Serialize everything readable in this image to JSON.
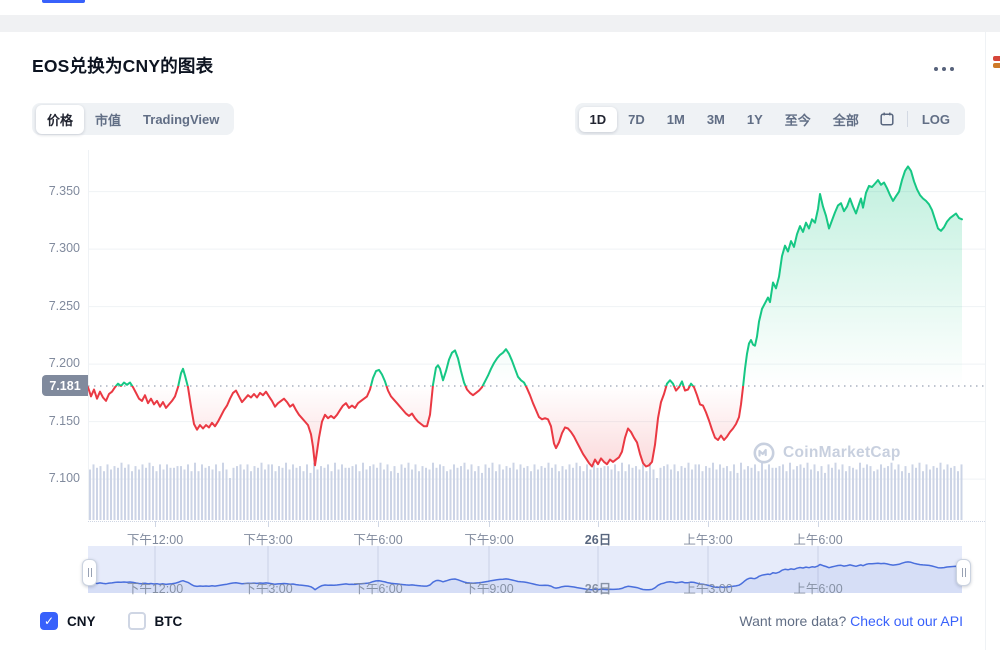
{
  "header": {
    "title": "EOS兑换为CNY的图表",
    "more_label": "more options"
  },
  "toolbar": {
    "chart_type": {
      "options": [
        "价格",
        "市值",
        "TradingView"
      ],
      "active": "价格"
    },
    "ranges": {
      "options": [
        "1D",
        "7D",
        "1M",
        "3M",
        "1Y",
        "至今",
        "全部"
      ],
      "active": "1D",
      "log_label": "LOG"
    }
  },
  "chart_data": {
    "type": "line",
    "title": "EOS to CNY price, 1D",
    "ylabel": "CNY",
    "ylim": [
      7.06,
      7.4
    ],
    "grid": true,
    "baseline_price": 7.181,
    "current_price_label": "7.181",
    "up_color": "#16c784",
    "down_color": "#ea3943",
    "y_ticks": [
      {
        "label": "7.350",
        "price": 7.35
      },
      {
        "label": "7.300",
        "price": 7.3
      },
      {
        "label": "7.250",
        "price": 7.25
      },
      {
        "label": "7.200",
        "price": 7.2
      },
      {
        "label": "7.150",
        "price": 7.15
      },
      {
        "label": "7.100",
        "price": 7.1
      }
    ],
    "x_ticks": [
      {
        "label": "下午12:00",
        "x": 155,
        "bold": false
      },
      {
        "label": "下午3:00",
        "x": 268,
        "bold": false
      },
      {
        "label": "下午6:00",
        "x": 378,
        "bold": false
      },
      {
        "label": "下午9:00",
        "x": 489,
        "bold": false
      },
      {
        "label": "26日",
        "x": 598,
        "bold": true
      },
      {
        "label": "上午3:00",
        "x": 708,
        "bold": false
      },
      {
        "label": "上午6:00",
        "x": 818,
        "bold": false
      }
    ],
    "points": [
      [
        88,
        7.18
      ],
      [
        91,
        7.172
      ],
      [
        94,
        7.178
      ],
      [
        97,
        7.17
      ],
      [
        100,
        7.176
      ],
      [
        103,
        7.171
      ],
      [
        106,
        7.168
      ],
      [
        109,
        7.174
      ],
      [
        112,
        7.176
      ],
      [
        115,
        7.18
      ],
      [
        118,
        7.183
      ],
      [
        121,
        7.181
      ],
      [
        124,
        7.184
      ],
      [
        127,
        7.182
      ],
      [
        130,
        7.184
      ],
      [
        133,
        7.18
      ],
      [
        136,
        7.175
      ],
      [
        139,
        7.17
      ],
      [
        142,
        7.168
      ],
      [
        145,
        7.173
      ],
      [
        148,
        7.166
      ],
      [
        151,
        7.17
      ],
      [
        154,
        7.165
      ],
      [
        157,
        7.168
      ],
      [
        160,
        7.163
      ],
      [
        163,
        7.167
      ],
      [
        166,
        7.162
      ],
      [
        169,
        7.165
      ],
      [
        172,
        7.168
      ],
      [
        175,
        7.172
      ],
      [
        178,
        7.18
      ],
      [
        181,
        7.192
      ],
      [
        183,
        7.196
      ],
      [
        185,
        7.19
      ],
      [
        188,
        7.18
      ],
      [
        191,
        7.163
      ],
      [
        194,
        7.148
      ],
      [
        197,
        7.143
      ],
      [
        200,
        7.147
      ],
      [
        203,
        7.144
      ],
      [
        206,
        7.147
      ],
      [
        209,
        7.145
      ],
      [
        212,
        7.149
      ],
      [
        215,
        7.146
      ],
      [
        218,
        7.15
      ],
      [
        221,
        7.155
      ],
      [
        224,
        7.16
      ],
      [
        227,
        7.164
      ],
      [
        230,
        7.17
      ],
      [
        233,
        7.175
      ],
      [
        236,
        7.177
      ],
      [
        239,
        7.172
      ],
      [
        242,
        7.167
      ],
      [
        245,
        7.17
      ],
      [
        248,
        7.173
      ],
      [
        251,
        7.171
      ],
      [
        254,
        7.174
      ],
      [
        257,
        7.171
      ],
      [
        260,
        7.175
      ],
      [
        263,
        7.173
      ],
      [
        266,
        7.176
      ],
      [
        269,
        7.172
      ],
      [
        272,
        7.168
      ],
      [
        275,
        7.163
      ],
      [
        278,
        7.166
      ],
      [
        281,
        7.168
      ],
      [
        284,
        7.17
      ],
      [
        287,
        7.167
      ],
      [
        290,
        7.163
      ],
      [
        293,
        7.165
      ],
      [
        296,
        7.16
      ],
      [
        299,
        7.156
      ],
      [
        302,
        7.153
      ],
      [
        305,
        7.15
      ],
      [
        308,
        7.147
      ],
      [
        311,
        7.139
      ],
      [
        313,
        7.128
      ],
      [
        315,
        7.112
      ],
      [
        317,
        7.124
      ],
      [
        319,
        7.136
      ],
      [
        322,
        7.15
      ],
      [
        325,
        7.156
      ],
      [
        328,
        7.153
      ],
      [
        331,
        7.155
      ],
      [
        334,
        7.153
      ],
      [
        337,
        7.156
      ],
      [
        340,
        7.16
      ],
      [
        343,
        7.164
      ],
      [
        346,
        7.166
      ],
      [
        349,
        7.162
      ],
      [
        352,
        7.164
      ],
      [
        355,
        7.162
      ],
      [
        358,
        7.166
      ],
      [
        361,
        7.168
      ],
      [
        364,
        7.17
      ],
      [
        367,
        7.172
      ],
      [
        370,
        7.178
      ],
      [
        373,
        7.188
      ],
      [
        376,
        7.194
      ],
      [
        379,
        7.195
      ],
      [
        382,
        7.191
      ],
      [
        385,
        7.185
      ],
      [
        388,
        7.177
      ],
      [
        391,
        7.172
      ],
      [
        394,
        7.169
      ],
      [
        397,
        7.166
      ],
      [
        400,
        7.163
      ],
      [
        403,
        7.16
      ],
      [
        406,
        7.157
      ],
      [
        409,
        7.155
      ],
      [
        412,
        7.157
      ],
      [
        415,
        7.153
      ],
      [
        418,
        7.15
      ],
      [
        421,
        7.148
      ],
      [
        424,
        7.146
      ],
      [
        427,
        7.146
      ],
      [
        430,
        7.156
      ],
      [
        433,
        7.182
      ],
      [
        436,
        7.197
      ],
      [
        438,
        7.199
      ],
      [
        440,
        7.196
      ],
      [
        443,
        7.186
      ],
      [
        446,
        7.194
      ],
      [
        449,
        7.204
      ],
      [
        452,
        7.21
      ],
      [
        455,
        7.212
      ],
      [
        458,
        7.205
      ],
      [
        461,
        7.194
      ],
      [
        464,
        7.184
      ],
      [
        467,
        7.178
      ],
      [
        470,
        7.175
      ],
      [
        473,
        7.173
      ],
      [
        476,
        7.175
      ],
      [
        479,
        7.177
      ],
      [
        482,
        7.18
      ],
      [
        485,
        7.185
      ],
      [
        488,
        7.19
      ],
      [
        491,
        7.196
      ],
      [
        494,
        7.201
      ],
      [
        497,
        7.205
      ],
      [
        500,
        7.208
      ],
      [
        503,
        7.21
      ],
      [
        506,
        7.213
      ],
      [
        509,
        7.209
      ],
      [
        512,
        7.203
      ],
      [
        515,
        7.196
      ],
      [
        518,
        7.189
      ],
      [
        521,
        7.186
      ],
      [
        524,
        7.184
      ],
      [
        527,
        7.179
      ],
      [
        530,
        7.173
      ],
      [
        533,
        7.166
      ],
      [
        536,
        7.16
      ],
      [
        539,
        7.154
      ],
      [
        542,
        7.152
      ],
      [
        545,
        7.153
      ],
      [
        548,
        7.152
      ],
      [
        551,
        7.146
      ],
      [
        554,
        7.131
      ],
      [
        556,
        7.127
      ],
      [
        559,
        7.132
      ],
      [
        562,
        7.14
      ],
      [
        565,
        7.145
      ],
      [
        568,
        7.144
      ],
      [
        571,
        7.141
      ],
      [
        574,
        7.137
      ],
      [
        577,
        7.132
      ],
      [
        580,
        7.127
      ],
      [
        583,
        7.122
      ],
      [
        586,
        7.118
      ],
      [
        589,
        7.114
      ],
      [
        592,
        7.111
      ],
      [
        595,
        7.117
      ],
      [
        598,
        7.113
      ],
      [
        601,
        7.118
      ],
      [
        604,
        7.115
      ],
      [
        607,
        7.113
      ],
      [
        610,
        7.117
      ],
      [
        613,
        7.115
      ],
      [
        616,
        7.117
      ],
      [
        619,
        7.119
      ],
      [
        622,
        7.124
      ],
      [
        625,
        7.136
      ],
      [
        628,
        7.144
      ],
      [
        631,
        7.141
      ],
      [
        634,
        7.136
      ],
      [
        637,
        7.132
      ],
      [
        640,
        7.122
      ],
      [
        643,
        7.114
      ],
      [
        646,
        7.111
      ],
      [
        649,
        7.112
      ],
      [
        652,
        7.115
      ],
      [
        655,
        7.13
      ],
      [
        658,
        7.153
      ],
      [
        661,
        7.167
      ],
      [
        664,
        7.174
      ],
      [
        667,
        7.183
      ],
      [
        670,
        7.186
      ],
      [
        673,
        7.183
      ],
      [
        676,
        7.177
      ],
      [
        679,
        7.18
      ],
      [
        682,
        7.185
      ],
      [
        685,
        7.177
      ],
      [
        688,
        7.178
      ],
      [
        691,
        7.183
      ],
      [
        694,
        7.18
      ],
      [
        697,
        7.173
      ],
      [
        700,
        7.165
      ],
      [
        703,
        7.164
      ],
      [
        706,
        7.158
      ],
      [
        709,
        7.151
      ],
      [
        712,
        7.143
      ],
      [
        715,
        7.136
      ],
      [
        718,
        7.134
      ],
      [
        721,
        7.138
      ],
      [
        724,
        7.134
      ],
      [
        727,
        7.137
      ],
      [
        730,
        7.141
      ],
      [
        733,
        7.144
      ],
      [
        736,
        7.148
      ],
      [
        739,
        7.154
      ],
      [
        741,
        7.165
      ],
      [
        743,
        7.18
      ],
      [
        745,
        7.196
      ],
      [
        747,
        7.209
      ],
      [
        749,
        7.218
      ],
      [
        751,
        7.221
      ],
      [
        753,
        7.217
      ],
      [
        755,
        7.216
      ],
      [
        757,
        7.224
      ],
      [
        759,
        7.237
      ],
      [
        762,
        7.248
      ],
      [
        765,
        7.253
      ],
      [
        768,
        7.258
      ],
      [
        770,
        7.254
      ],
      [
        773,
        7.271
      ],
      [
        776,
        7.266
      ],
      [
        779,
        7.276
      ],
      [
        782,
        7.294
      ],
      [
        785,
        7.303
      ],
      [
        788,
        7.298
      ],
      [
        791,
        7.307
      ],
      [
        794,
        7.302
      ],
      [
        797,
        7.313
      ],
      [
        800,
        7.32
      ],
      [
        803,
        7.315
      ],
      [
        806,
        7.323
      ],
      [
        809,
        7.318
      ],
      [
        812,
        7.326
      ],
      [
        815,
        7.323
      ],
      [
        818,
        7.335
      ],
      [
        820,
        7.348
      ],
      [
        823,
        7.337
      ],
      [
        826,
        7.329
      ],
      [
        829,
        7.318
      ],
      [
        832,
        7.325
      ],
      [
        835,
        7.332
      ],
      [
        838,
        7.338
      ],
      [
        841,
        7.34
      ],
      [
        844,
        7.333
      ],
      [
        847,
        7.337
      ],
      [
        850,
        7.344
      ],
      [
        853,
        7.337
      ],
      [
        856,
        7.331
      ],
      [
        859,
        7.339
      ],
      [
        861,
        7.344
      ],
      [
        863,
        7.336
      ],
      [
        866,
        7.349
      ],
      [
        869,
        7.355
      ],
      [
        872,
        7.354
      ],
      [
        875,
        7.357
      ],
      [
        878,
        7.36
      ],
      [
        881,
        7.356
      ],
      [
        884,
        7.358
      ],
      [
        887,
        7.353
      ],
      [
        890,
        7.347
      ],
      [
        893,
        7.342
      ],
      [
        896,
        7.346
      ],
      [
        899,
        7.35
      ],
      [
        902,
        7.36
      ],
      [
        905,
        7.368
      ],
      [
        908,
        7.372
      ],
      [
        911,
        7.368
      ],
      [
        914,
        7.359
      ],
      [
        917,
        7.352
      ],
      [
        920,
        7.347
      ],
      [
        923,
        7.344
      ],
      [
        926,
        7.342
      ],
      [
        929,
        7.339
      ],
      [
        932,
        7.334
      ],
      [
        935,
        7.326
      ],
      [
        938,
        7.318
      ],
      [
        941,
        7.316
      ],
      [
        944,
        7.319
      ],
      [
        947,
        7.324
      ],
      [
        950,
        7.327
      ],
      [
        953,
        7.329
      ],
      [
        956,
        7.331
      ],
      [
        959,
        7.327
      ],
      [
        962,
        7.326
      ]
    ],
    "volume_profile": "58674857696847586974858667758494867584950678584769588476958674839576849586678495786958473869584765968745867958473869485769",
    "volume_color": "#ccd4e6"
  },
  "navigator": {
    "bg": "#e6ebfa",
    "line_color": "#4a6fdc",
    "labels": [
      {
        "label": "下午12:00",
        "x": 155,
        "bold": false
      },
      {
        "label": "下午3:00",
        "x": 268,
        "bold": false
      },
      {
        "label": "下午6:00",
        "x": 378,
        "bold": false
      },
      {
        "label": "下午9:00",
        "x": 489,
        "bold": false
      },
      {
        "label": "26日",
        "x": 598,
        "bold": true
      },
      {
        "label": "上午3:00",
        "x": 708,
        "bold": false
      },
      {
        "label": "上午6:00",
        "x": 818,
        "bold": false
      }
    ]
  },
  "legend": {
    "items": [
      {
        "label": "CNY",
        "checked": true
      },
      {
        "label": "BTC",
        "checked": false
      }
    ]
  },
  "footer": {
    "prompt": "Want more data?",
    "link": "Check out our API"
  },
  "watermark": {
    "text": "CoinMarketCap"
  }
}
